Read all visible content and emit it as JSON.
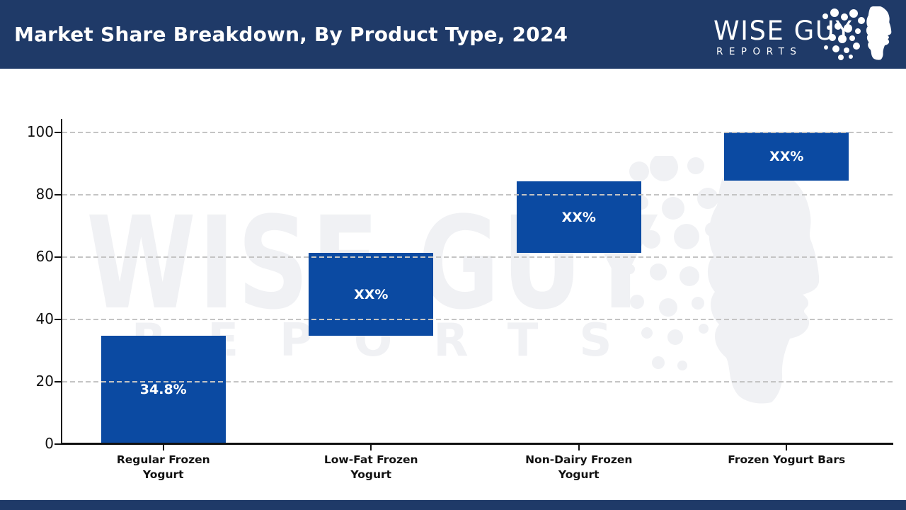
{
  "header": {
    "title": "Market Share Breakdown, By Product Type, 2024",
    "logo": {
      "line1": "WISE GUY",
      "line2": "REPORTS"
    }
  },
  "watermark": {
    "line1": "WISE GUY",
    "line2": "REPORTS"
  },
  "footer": {},
  "colors": {
    "header_bg": "#1f3a68",
    "footer_bg": "#1f3a68",
    "bar_fill": "#0b4aa2",
    "bar_label": "#ffffff",
    "gridline": "#c4c4c4",
    "axis": "#111111",
    "watermark": "#f0f1f4"
  },
  "chart_data": {
    "type": "bar",
    "subtype": "floating-waterfall-segments",
    "title": "Market Share Breakdown, By Product Type, 2024",
    "categories": [
      "Regular Frozen Yogurt",
      "Low-Fat Frozen Yogurt",
      "Non-Dairy Frozen Yogurt",
      "Frozen Yogurt Bars"
    ],
    "xtick_labels": [
      "Regular Frozen\nYogurt",
      "Low-Fat Frozen\nYogurt",
      "Non-Dairy Frozen\nYogurt",
      "Frozen Yogurt Bars"
    ],
    "bars": [
      {
        "category": "Regular Frozen Yogurt",
        "start": 0,
        "end": 34.8,
        "label": "34.8%"
      },
      {
        "category": "Low-Fat Frozen Yogurt",
        "start": 34.8,
        "end": 61.3,
        "label": "XX%"
      },
      {
        "category": "Non-Dairy Frozen Yogurt",
        "start": 61.3,
        "end": 84.3,
        "label": "XX%"
      },
      {
        "category": "Frozen Yogurt Bars",
        "start": 84.5,
        "end": 100,
        "label": "XX%"
      }
    ],
    "xlabel": "",
    "ylabel": "",
    "ylim": [
      0,
      100
    ],
    "yticks": [
      0,
      20,
      40,
      60,
      80,
      100
    ],
    "grid": "dashed-horizontal",
    "legend": false
  }
}
